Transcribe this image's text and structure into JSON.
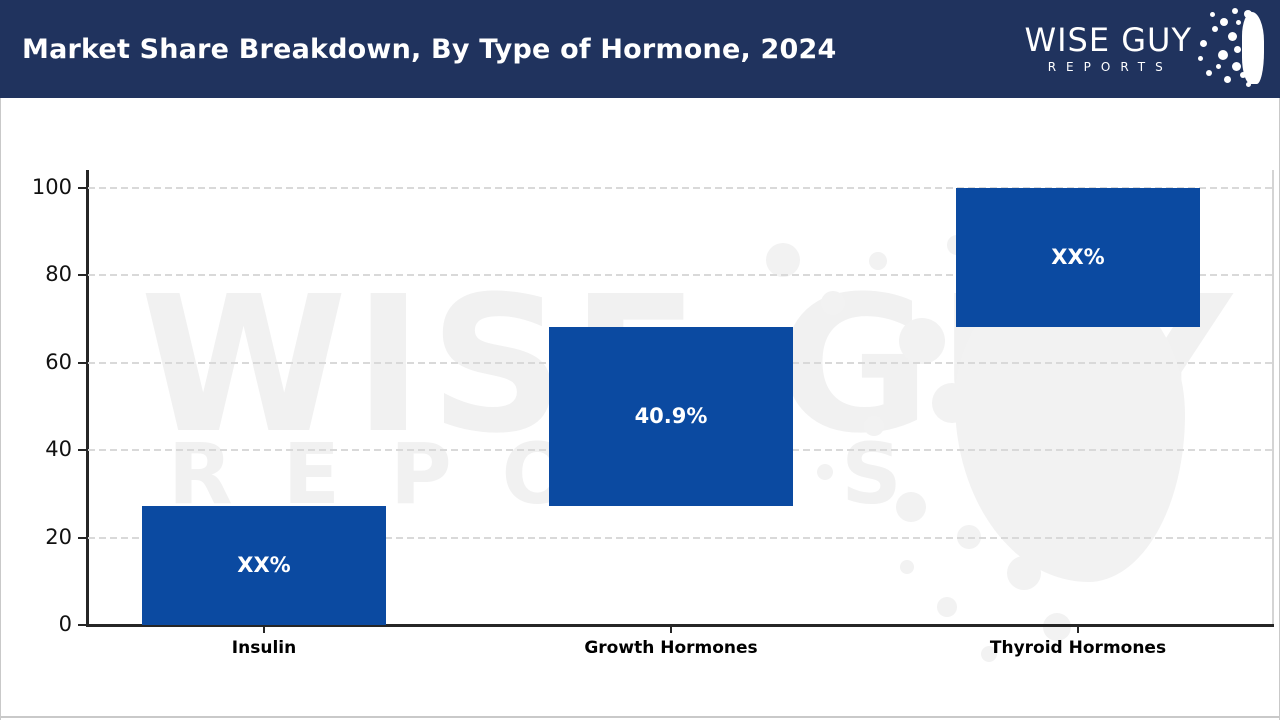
{
  "header": {
    "title": "Market Share Breakdown, By Type of Hormone, 2024"
  },
  "logo": {
    "line1": "WISE GUY",
    "line2": "REPORTS"
  },
  "watermark": {
    "line1": "WISE GUY",
    "line2": "REPORTS"
  },
  "colors": {
    "header_bg": "#20335e",
    "bar": "#0b4aa1",
    "gridline": "#d9d9d9",
    "axis": "#262626",
    "watermark": "#f1f1f1",
    "bar_label_text": "#ffffff"
  },
  "chart_data": {
    "type": "bar",
    "variant": "floating-waterfall-segments",
    "title": "Market Share Breakdown, By Type of Hormone, 2024",
    "categories": [
      "Insulin",
      "Growth Hormones",
      "Thyroid Hormones"
    ],
    "segments": [
      {
        "category": "Insulin",
        "from": 0,
        "to": 27.3,
        "value_label": "XX%"
      },
      {
        "category": "Growth Hormones",
        "from": 27.3,
        "to": 68.2,
        "value_label": "40.9%"
      },
      {
        "category": "Thyroid Hormones",
        "from": 68.2,
        "to": 100,
        "value_label": "XX%"
      }
    ],
    "yticks": [
      0,
      20,
      40,
      60,
      80,
      100
    ],
    "ylim": [
      0,
      100
    ],
    "xlabel": "",
    "ylabel": "",
    "grid": "dashed-horizontal",
    "legend": "none"
  }
}
